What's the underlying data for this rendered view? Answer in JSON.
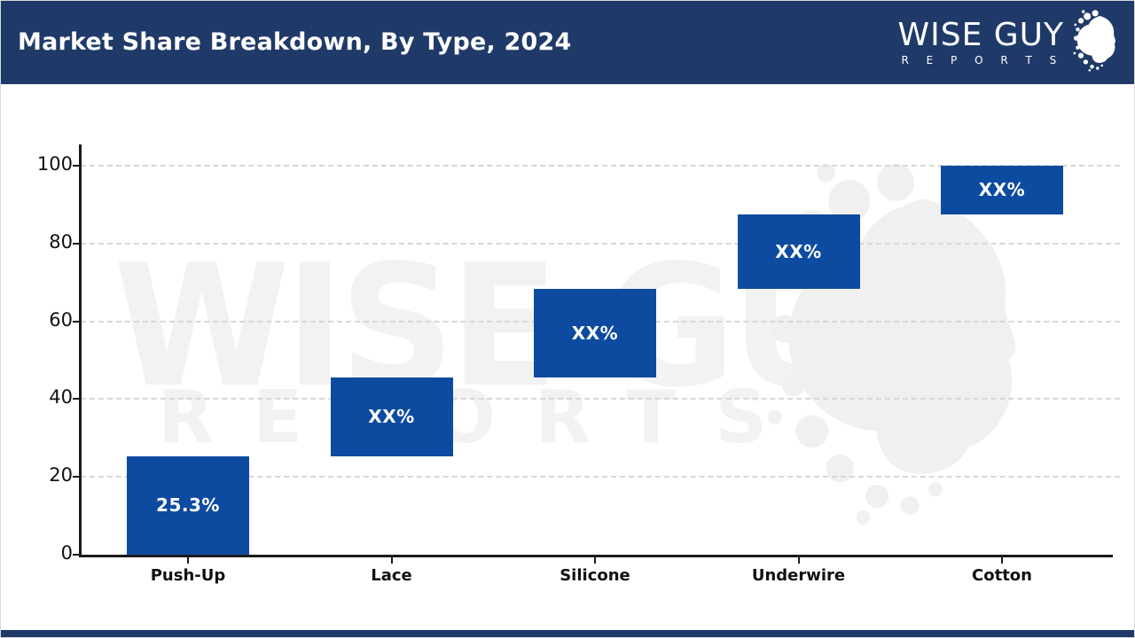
{
  "header": {
    "title": "Market Share Breakdown, By Type, 2024",
    "logo_line1": "WISE GUY",
    "logo_line2": "R E P O R T S"
  },
  "colors": {
    "header_bg": "#1f3a69",
    "bar": "#0d4ba0",
    "axis": "#1a1a1a",
    "grid": "#d7d7d7",
    "watermark": "#f2f2f2",
    "page_bg": "#ffffff"
  },
  "watermark": {
    "line1": "WISE GUY",
    "line2": "REPORTS"
  },
  "chart_data": {
    "type": "bar",
    "subtype": "waterfall",
    "title": "Market Share Breakdown, By Type, 2024",
    "categories": [
      "Push-Up",
      "Lace",
      "Silicone",
      "Underwire",
      "Cotton"
    ],
    "segments": [
      {
        "category": "Push-Up",
        "start": 0,
        "end": 25.3,
        "value_label": "25.3%"
      },
      {
        "category": "Lace",
        "start": 25.3,
        "end": 45.6,
        "value_label": "XX%"
      },
      {
        "category": "Silicone",
        "start": 45.6,
        "end": 68.3,
        "value_label": "XX%"
      },
      {
        "category": "Underwire",
        "start": 68.3,
        "end": 87.5,
        "value_label": "XX%"
      },
      {
        "category": "Cotton",
        "start": 87.5,
        "end": 100,
        "value_label": "XX%"
      }
    ],
    "y_ticks": [
      0,
      20,
      40,
      60,
      80,
      100
    ],
    "ylim": [
      0,
      105
    ],
    "xlabel": "",
    "ylabel": "",
    "grid": "horizontal-dashed",
    "legend": "none"
  }
}
